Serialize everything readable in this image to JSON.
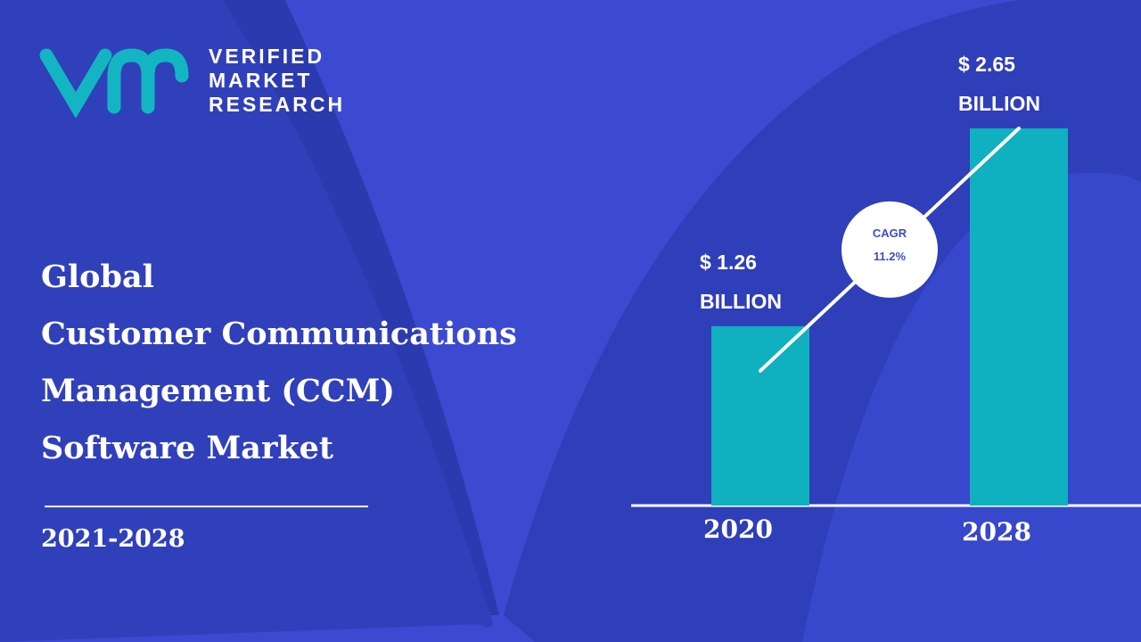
{
  "logo": {
    "lines": [
      "VERIFIED",
      "MARKET",
      "RESEARCH"
    ]
  },
  "title_lines": [
    "Global",
    "Customer Communications",
    "Management (CCM)",
    "Software Market"
  ],
  "period": "2021-2028",
  "chart_data": {
    "type": "bar",
    "categories": [
      "2020",
      "2028"
    ],
    "values": [
      1.26,
      2.65
    ],
    "value_labels": [
      "$  1.26",
      "$  2.65"
    ],
    "value_units": [
      "BILLION",
      "BILLION"
    ],
    "color": "#0fb0c0",
    "ylim": [
      0,
      2.8
    ],
    "annotation": {
      "label": "CAGR",
      "value": "11.2%"
    }
  }
}
